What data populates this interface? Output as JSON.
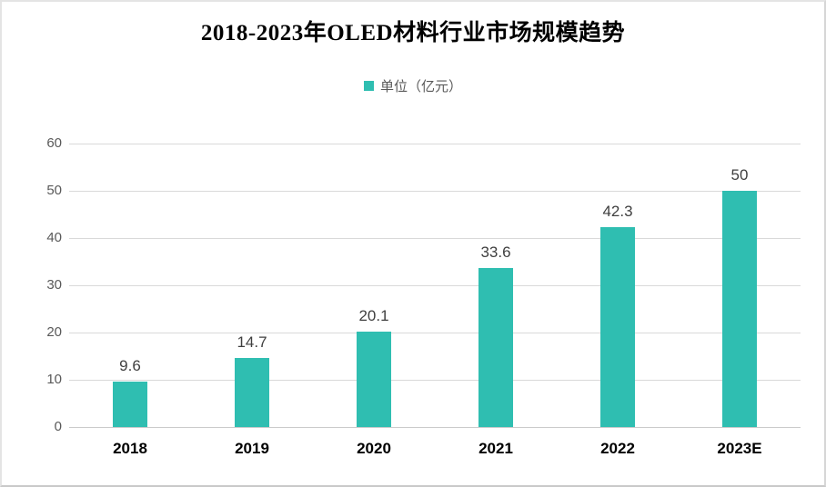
{
  "chart_data": {
    "type": "bar",
    "title": "2018-2023年OLED材料行业市场规模趋势",
    "legend": [
      {
        "label": "单位（亿元）",
        "color": "#2FBEB1"
      }
    ],
    "legend_position": "top-center",
    "categories": [
      "2018",
      "2019",
      "2020",
      "2021",
      "2022",
      "2023E"
    ],
    "values": [
      9.6,
      14.7,
      20.1,
      33.6,
      42.3,
      50
    ],
    "value_labels": [
      "9.6",
      "14.7",
      "20.1",
      "33.6",
      "42.3",
      "50"
    ],
    "xlabel": "",
    "ylabel": "",
    "ylim": [
      0,
      60
    ],
    "yticks": [
      0,
      10,
      20,
      30,
      40,
      50,
      60
    ],
    "grid": true,
    "bar_color": "#2FBEB1"
  },
  "colors": {
    "bar": "#2FBEB1",
    "gridline": "#D9D9D9",
    "axis_line": "#CBCBCB",
    "tick_text": "#595959",
    "value_label_text": "#3F3F3F",
    "x_label_text": "#000000",
    "title_text": "#000000",
    "background": "#FFFFFF",
    "card_border": "#E4E4E4"
  }
}
